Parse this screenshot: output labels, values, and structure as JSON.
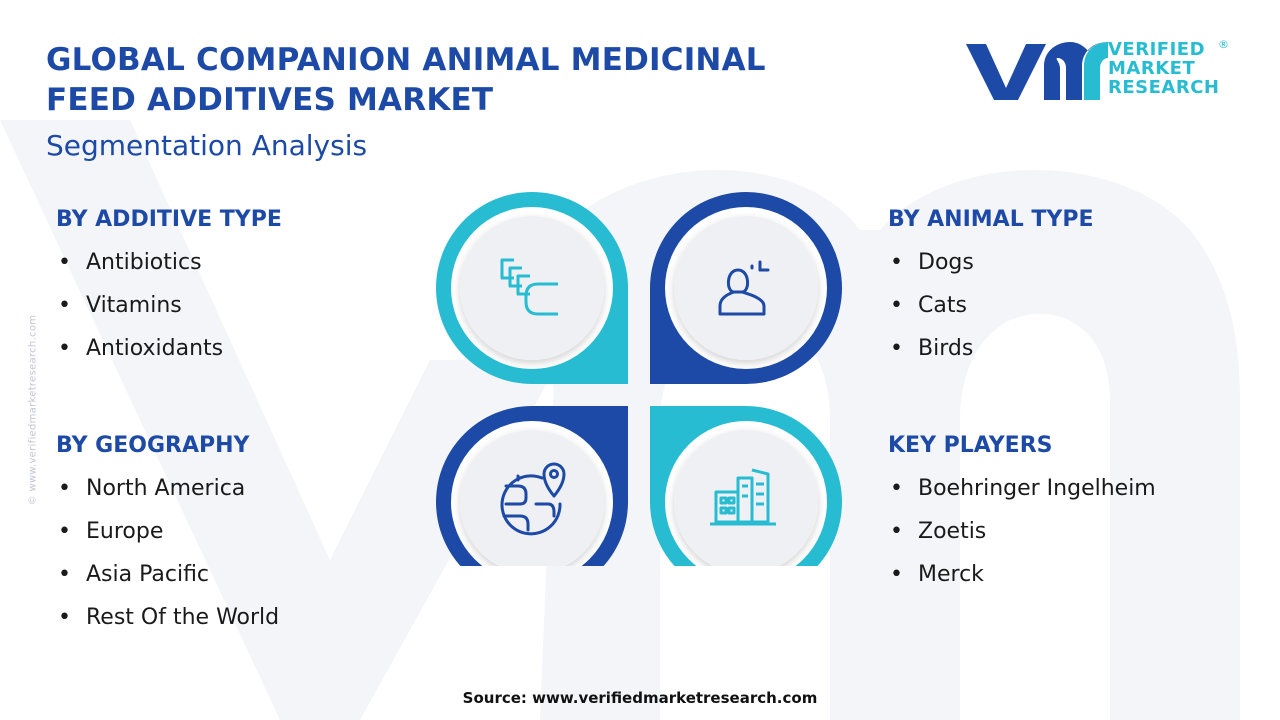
{
  "header": {
    "title_line1": "GLOBAL COMPANION ANIMAL MEDICINAL",
    "title_line2": "FEED ADDITIVES MARKET",
    "subtitle": "Segmentation Analysis"
  },
  "logo": {
    "line1": "VERIFIED",
    "line2": "MARKET",
    "line3": "RESEARCH",
    "registered_mark": "®"
  },
  "side_watermark": "© www.verifiedmarketresearch.com",
  "segments": {
    "additive_type": {
      "heading": "BY ADDITIVE TYPE",
      "items": [
        "Antibiotics",
        "Vitamins",
        "Antioxidants"
      ],
      "icon": "capsules-icon"
    },
    "animal_type": {
      "heading": "BY ANIMAL TYPE",
      "items": [
        "Dogs",
        "Cats",
        "Birds"
      ],
      "icon": "user-icon"
    },
    "geography": {
      "heading": "BY GEOGRAPHY",
      "items": [
        "North America",
        "Europe",
        "Asia Pacific",
        "Rest Of the World"
      ],
      "icon": "globe-pin-icon"
    },
    "key_players": {
      "heading": "KEY PLAYERS",
      "items": [
        "Boehringer Ingelheim",
        "Zoetis",
        "Merck"
      ],
      "icon": "buildings-icon"
    }
  },
  "footer": {
    "source": "Source: www.verifiedmarketresearch.com"
  },
  "colors": {
    "navy": "#1d4aa6",
    "cyan": "#27bcd2",
    "circle_fill": "#eef0f3",
    "watermark": "#f3f5f9"
  }
}
